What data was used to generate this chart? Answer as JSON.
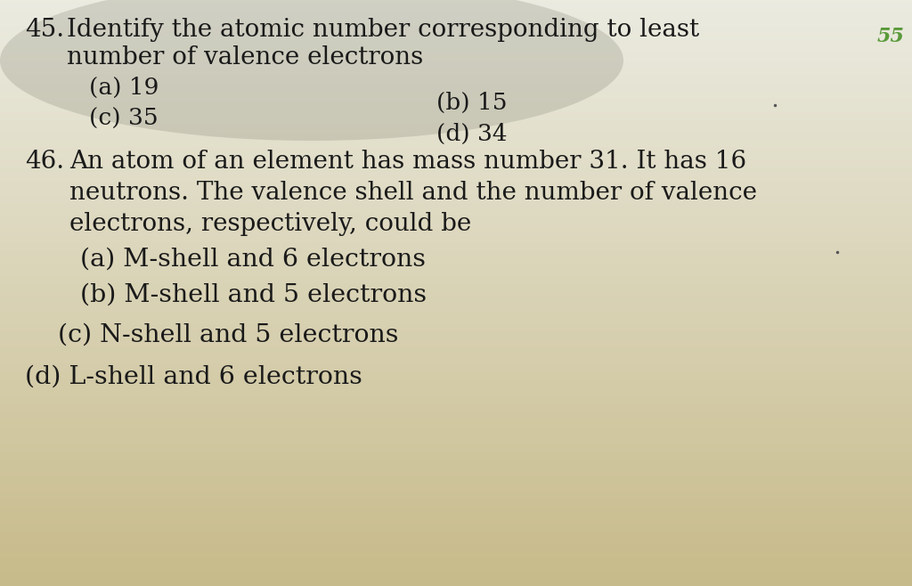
{
  "bg_color_top": "#e8e8e0",
  "bg_color_bottom": "#c8bc8a",
  "bg_color_mid": "#d4c89a",
  "text_color": "#1a1a1a",
  "green_color": "#5a9a3a",
  "q45_number": "45.",
  "q45_line1": "Identify the atomic number corresponding to least",
  "q45_line2": "number of valence electrons",
  "q45_a": "(a) 19",
  "q45_b": "(b) 15",
  "q45_c": "(c) 35",
  "q45_d": "(d) 34",
  "q46_number": "46.",
  "q46_line1": "An atom of an element has mass number 31. It has 16",
  "q46_line2": "neutrons. The valence shell and the number of valence",
  "q46_line3": "electrons, respectively, could be",
  "q46_a": "(a) M-shell and 6 electrons",
  "q46_b": "(b) M-shell and 5 electrons",
  "q46_c": "(c) N-shell and 5 electrons",
  "q46_d": "(d) L-shell and 6 electrons",
  "page_number": "55",
  "font_size_q": 20.0,
  "font_size_opt": 19.0,
  "font_size_q46_opt": 20.5,
  "font_size_page": 16.0
}
